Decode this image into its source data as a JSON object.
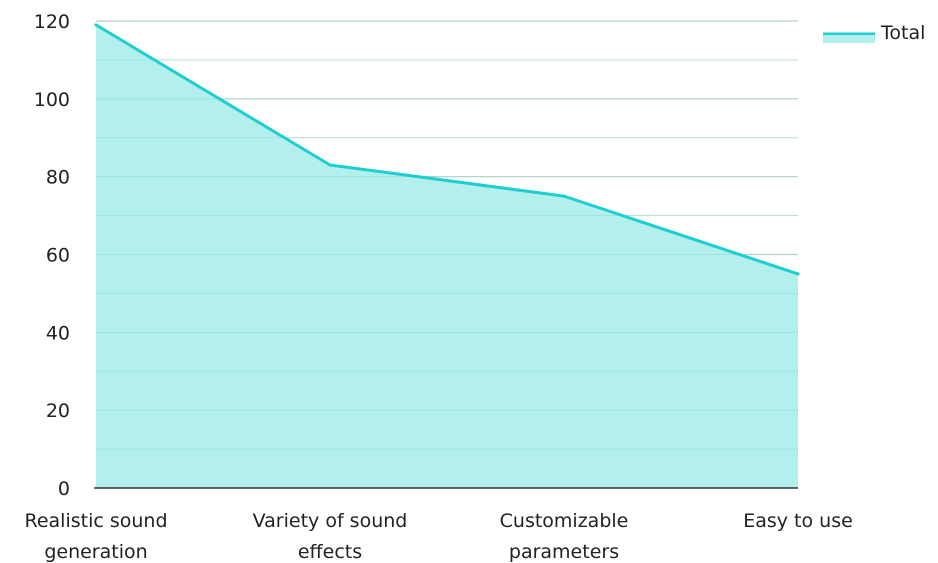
{
  "chart_data": {
    "type": "area",
    "categories": [
      [
        "Realistic sound",
        "generation"
      ],
      [
        "Variety of sound",
        "effects"
      ],
      [
        "Customizable",
        "parameters"
      ],
      [
        "Easy to use"
      ]
    ],
    "series": [
      {
        "name": "Total",
        "values": [
          119,
          83,
          75,
          55
        ]
      }
    ],
    "y_ticks": [
      "0",
      "20",
      "40",
      "60",
      "80",
      "100",
      "120"
    ],
    "ylim": [
      0,
      120
    ],
    "grid": true,
    "legend": "top-right",
    "colors": {
      "line": "#1ecfcf",
      "fill": "#b2efed",
      "grid": "#cccccc",
      "axis": "#333333"
    }
  }
}
